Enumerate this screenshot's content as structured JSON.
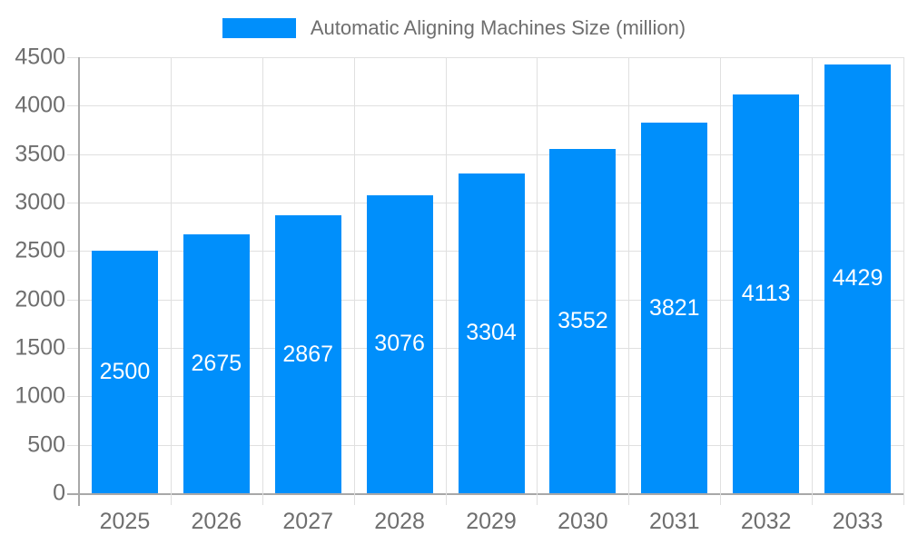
{
  "legend": {
    "label": "Automatic Aligning Machines Size (million)"
  },
  "chart_data": {
    "type": "bar",
    "title": "Automatic Aligning Machines Size (million)",
    "categories": [
      "2025",
      "2026",
      "2027",
      "2028",
      "2029",
      "2030",
      "2031",
      "2032",
      "2033"
    ],
    "series": [
      {
        "name": "Automatic Aligning Machines Size (million)",
        "values": [
          2500,
          2675,
          2867,
          3076,
          3304,
          3552,
          3821,
          4113,
          4429
        ]
      }
    ],
    "bar_value_labels": [
      2500,
      2675,
      2867,
      3076,
      3304,
      3552,
      3821,
      4113,
      4429
    ],
    "xlabel": "",
    "ylabel": "",
    "ylim": [
      0,
      4500
    ],
    "ytick_step": 500,
    "ytick_labels": [
      "0",
      "500",
      "1000",
      "1500",
      "2000",
      "2500",
      "3000",
      "3500",
      "4000",
      "4500"
    ],
    "grid": true,
    "legend_position": "top",
    "colors": {
      "bar": "#008FFB",
      "bar_label_text": "#ffffff",
      "axis_text": "#6e6e6e",
      "legend_text": "#6e6e6e",
      "gridline": "#e0e0e0",
      "axis_line": "#a8a8a8"
    }
  }
}
